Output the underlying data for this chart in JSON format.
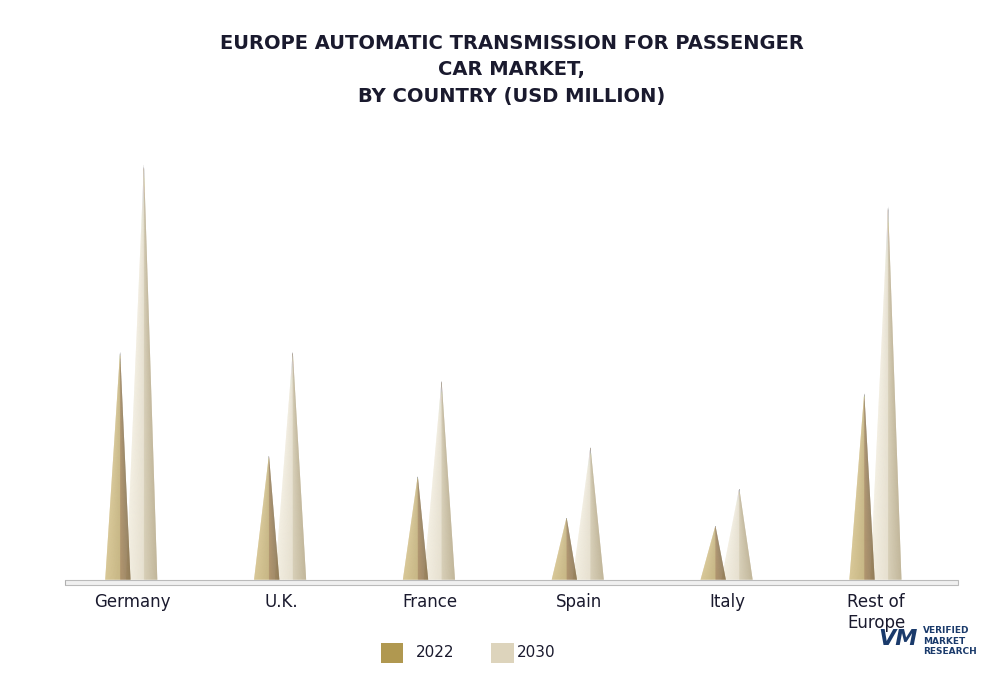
{
  "title": "EUROPE AUTOMATIC TRANSMISSION FOR PASSENGER\nCAR MARKET,\nBY COUNTRY (USD MILLION)",
  "categories": [
    "Germany",
    "U.K.",
    "France",
    "Spain",
    "Italy",
    "Rest of\nEurope"
  ],
  "values_2022": [
    5.5,
    3.0,
    2.5,
    1.5,
    1.3,
    4.5
  ],
  "values_2030": [
    10.0,
    5.5,
    4.8,
    3.2,
    2.2,
    9.0
  ],
  "color_2022_left": "#C4A96A",
  "color_2022_right": "#7A6235",
  "color_2030_left": "#E8DEC8",
  "color_2030_right": "#B0A080",
  "background_color": "#FFFFFF",
  "title_fontsize": 14,
  "label_fontsize": 12,
  "legend_fontsize": 11,
  "ylim": [
    0,
    11
  ],
  "legend_labels": [
    "2022",
    "2030"
  ],
  "floor_color": "#D8D8D8",
  "floor_edge_color": "#C0C0C0"
}
